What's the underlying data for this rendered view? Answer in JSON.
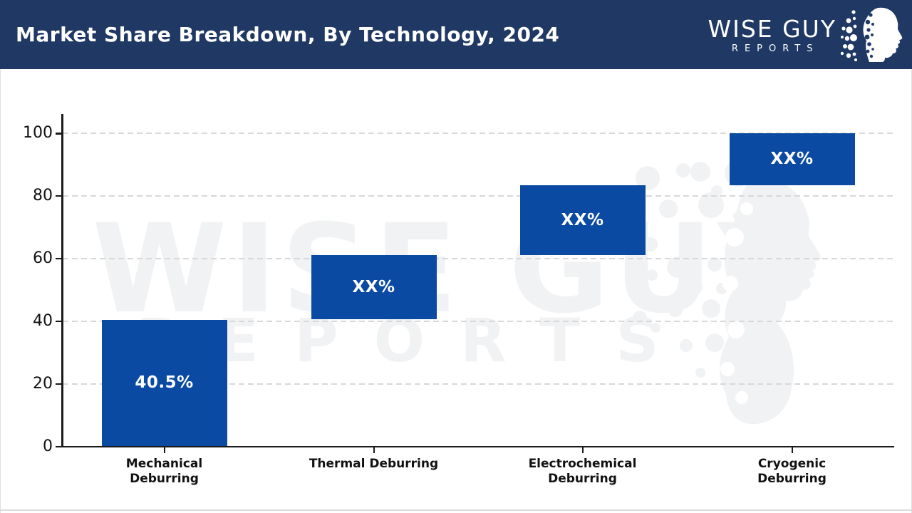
{
  "header": {
    "title": "Market Share Breakdown, By Technology, 2024",
    "logo": {
      "line1": "WISE GUY",
      "line2": "REPORTS"
    }
  },
  "watermark": {
    "line1": "WISE GUY",
    "line2": "REPORTS"
  },
  "chart_data": {
    "type": "bar",
    "subtype": "waterfall",
    "title": "Market Share Breakdown, By Technology, 2024",
    "categories": [
      "Mechanical Deburring",
      "Thermal Deburring",
      "Electrochemical Deburring",
      "Cryogenic Deburring"
    ],
    "category_label_lines": [
      [
        "Mechanical",
        "Deburring"
      ],
      [
        "Thermal Deburring"
      ],
      [
        "Electrochemical",
        "Deburring"
      ],
      [
        "Cryogenic",
        "Deburring"
      ]
    ],
    "segments": [
      {
        "category": "Mechanical Deburring",
        "start": 0,
        "end": 40.5,
        "label": "40.5%"
      },
      {
        "category": "Thermal Deburring",
        "start": 40.5,
        "end": 61,
        "label": "XX%"
      },
      {
        "category": "Electrochemical Deburring",
        "start": 61,
        "end": 83.5,
        "label": "XX%"
      },
      {
        "category": "Cryogenic Deburring",
        "start": 83.5,
        "end": 100,
        "label": "XX%"
      }
    ],
    "xlabel": "",
    "ylabel": "",
    "ylim": [
      0,
      100
    ],
    "yticks": [
      0,
      20,
      40,
      60,
      80,
      100
    ],
    "grid": "horizontal-dashed",
    "legend": "none",
    "colors": {
      "bar": "#0b4aa2",
      "bar_label": "#ffffff",
      "grid": "#d8d8d8",
      "axis": "#1a1a1a",
      "header_bg": "#1f3864",
      "header_text": "#ffffff",
      "watermark": "#f1f2f4"
    }
  }
}
